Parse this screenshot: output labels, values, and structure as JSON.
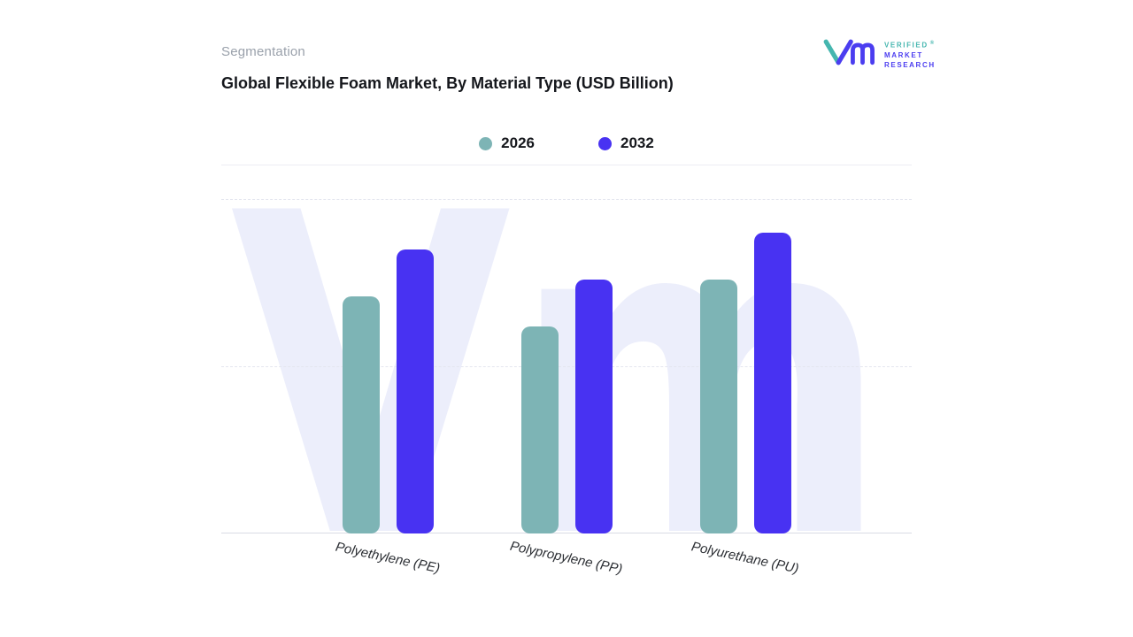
{
  "header": {
    "eyebrow": "Segmentation",
    "title": "Global Flexible Foam Market, By Material Type (USD Billion)"
  },
  "logo": {
    "lines": [
      "VERIFIED",
      "MARKET",
      "RESEARCH"
    ],
    "registered": "®",
    "teal": "#45b6af",
    "purple": "#4b3df0"
  },
  "legend": [
    {
      "label": "2026",
      "color": "#7db4b5"
    },
    {
      "label": "2032",
      "color": "#4832f2"
    }
  ],
  "chart_data": {
    "type": "bar",
    "title": "Global Flexible Foam Market, By Material Type (USD Billion)",
    "categories": [
      "Polyethylene (PE)",
      "Polypropylene (PP)",
      "Polyurethane (PU)"
    ],
    "series": [
      {
        "name": "2026",
        "color": "#7db4b5",
        "values": [
          71,
          62,
          76
        ]
      },
      {
        "name": "2032",
        "color": "#4832f2",
        "values": [
          85,
          76,
          90
        ]
      }
    ],
    "xlabel": "",
    "ylabel": "",
    "ylim": [
      0,
      100
    ],
    "yaxis_tick_labels": "none shown; values estimated relative to plot height",
    "grid": "horizontal-dashed",
    "legend_position": "top-center"
  },
  "watermark": {
    "text": "Vm",
    "color": "#eceefb"
  }
}
